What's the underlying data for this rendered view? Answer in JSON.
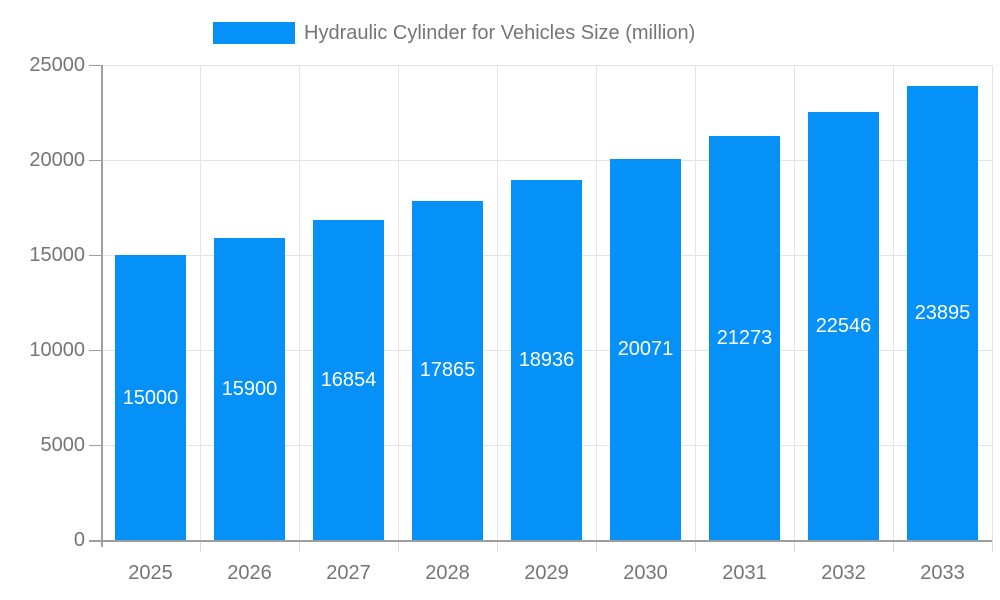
{
  "page": {
    "background_color": "#ffffff"
  },
  "legend": {
    "label": "Hydraulic Cylinder for Vehicles Size (million)",
    "swatch_color": "#0591f8",
    "position": "top"
  },
  "chart_data": {
    "type": "bar",
    "title": "Hydraulic Cylinder for Vehicles Size (million)",
    "series_name": "Hydraulic Cylinder for Vehicles Size (million)",
    "categories": [
      "2025",
      "2026",
      "2027",
      "2028",
      "2029",
      "2030",
      "2031",
      "2032",
      "2033"
    ],
    "values": [
      15000,
      15900,
      16854,
      17865,
      18936,
      20071,
      21273,
      22546,
      23895
    ],
    "xlabel": "",
    "ylabel": "",
    "ylim": [
      0,
      25000
    ],
    "yticks": [
      0,
      5000,
      10000,
      15000,
      20000,
      25000
    ],
    "grid": true,
    "legend_position": "top",
    "bar_color": "#0591f8",
    "data_label_color": "#ffffff",
    "axis_color": "#9e9e9e",
    "gridline_color": "#e4e4e4",
    "tick_label_color": "#757575"
  }
}
